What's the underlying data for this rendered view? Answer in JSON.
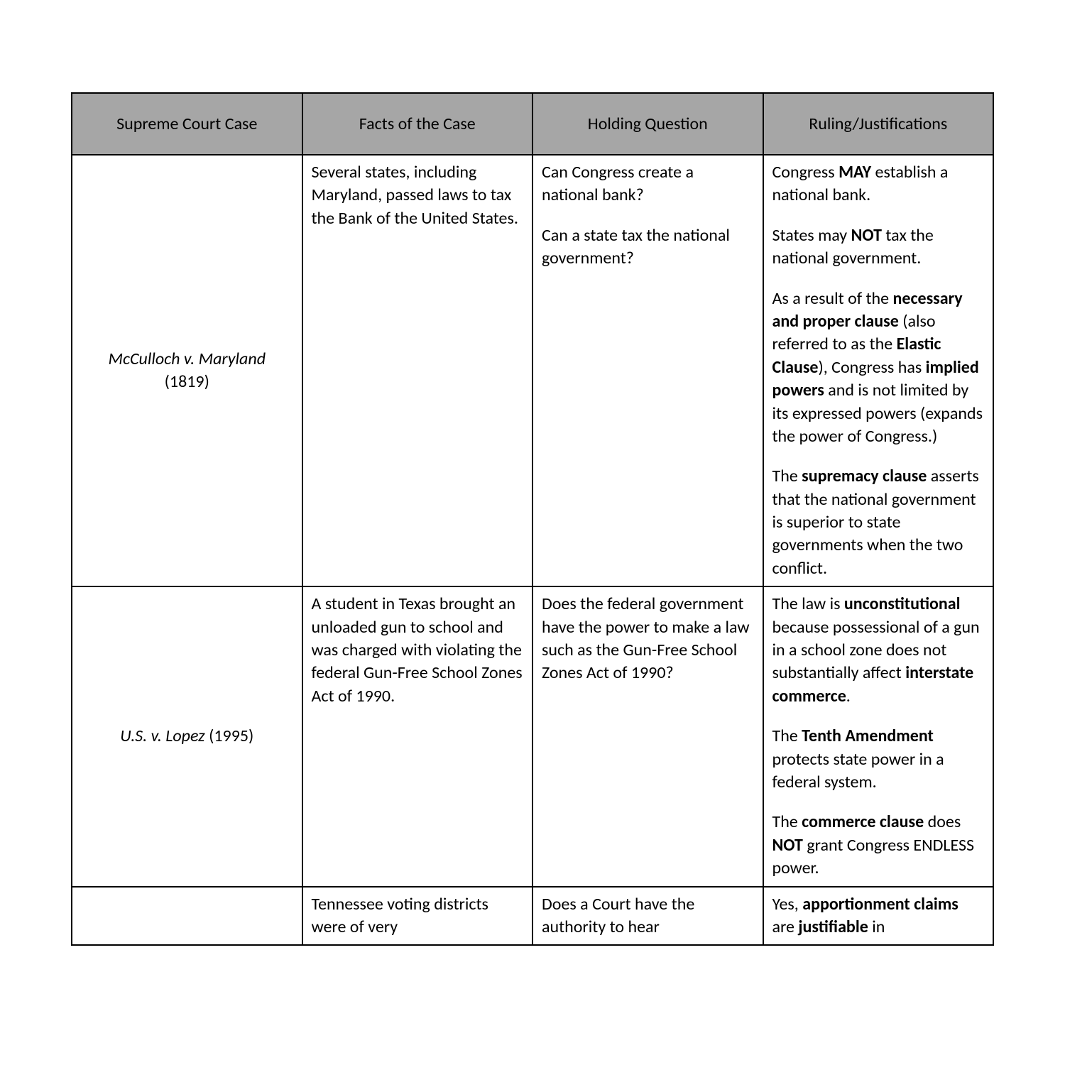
{
  "headers": {
    "case": "Supreme Court Case",
    "facts": "Facts of the Case",
    "holding": "Holding Question",
    "ruling": "Ruling/Justifications"
  },
  "rows": [
    {
      "case_name": "McCulloch v. Maryland",
      "case_year": "(1819)",
      "facts_p1": "Several states, including Maryland, passed laws to tax the Bank of the United States.",
      "holding_p1": "Can Congress create a national bank?",
      "holding_p2": "Can a state tax the national government?",
      "ruling": {
        "p1_a": "Congress ",
        "p1_b": "MAY",
        "p1_c": " establish a national bank.",
        "p2_a": "States may ",
        "p2_b": "NOT",
        "p2_c": " tax the national government.",
        "p3_a": "As a result of the ",
        "p3_b": "necessary and proper clause",
        "p3_c": " (also referred to as the ",
        "p3_d": "Elastic Clause",
        "p3_e": "), Congress has ",
        "p3_f": "implied powers",
        "p3_g": " and is not limited by its expressed powers (expands the power of Congress.)",
        "p4_a": "The ",
        "p4_b": "supremacy clause",
        "p4_c": " asserts that the national government is superior to state governments when the two conflict."
      }
    },
    {
      "case_name": "U.S. v. Lopez",
      "case_year": " (1995)",
      "facts_p1": "A student in Texas brought an unloaded gun to school and was charged with violating the federal Gun-Free School Zones Act of 1990.",
      "holding_p1": "Does the federal government have the power to make a law such as the Gun-Free School Zones Act of 1990?",
      "ruling": {
        "p1_a": "The law is ",
        "p1_b": "unconstitutional",
        "p1_c": " because possessional of a gun in a school zone does not substantially affect ",
        "p1_d": "interstate commerce",
        "p1_e": ".",
        "p2_a": "The ",
        "p2_b": "Tenth Amendment",
        "p2_c": " protects state power in a federal system.",
        "p3_a": "The ",
        "p3_b": "commerce clause",
        "p3_c": " does ",
        "p3_d": "NOT",
        "p3_e": " grant Congress ENDLESS power."
      }
    },
    {
      "case_name": "",
      "case_year": "",
      "facts_p1": "Tennessee voting districts were of very",
      "holding_p1": "Does a Court have the authority to hear",
      "ruling": {
        "p1_a": "Yes, ",
        "p1_b": "apportionment claims",
        "p1_c": " are ",
        "p1_d": "justifiable",
        "p1_e": " in"
      }
    }
  ]
}
